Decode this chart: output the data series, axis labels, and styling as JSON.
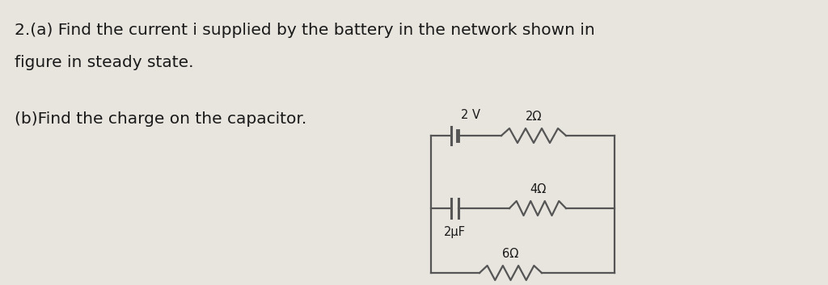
{
  "background_color": "#e8e4de",
  "text_color": "#1a1a1a",
  "title_line1": "2.(a) Find the current i supplied by the battery in the network shown in",
  "title_line2": "figure in steady state.",
  "subtitle": "(b)Find the charge on the capacitor.",
  "title_fontsize": 14.5,
  "subtitle_fontsize": 14.5,
  "circuit": {
    "line_color": "#555555",
    "line_width": 1.6,
    "battery_2V_label": "2 V",
    "capacitor_label": "2μF",
    "r1_label": "2Ω",
    "r2_label": "4Ω",
    "r3_label": "6Ω"
  }
}
